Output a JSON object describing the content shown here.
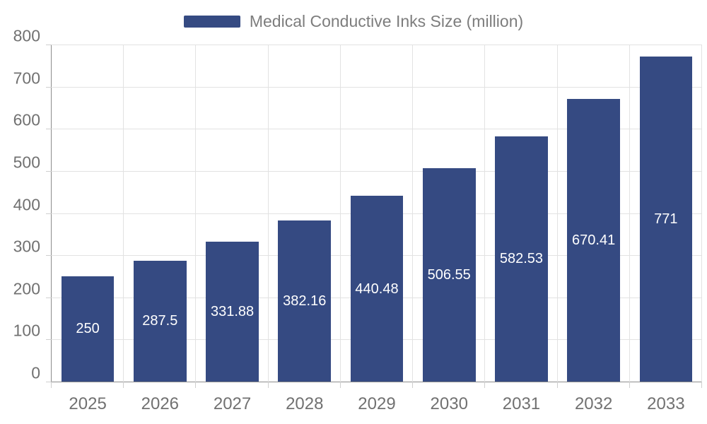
{
  "chart_data": {
    "type": "bar",
    "legend_label": "Medical Conductive Inks Size (million)",
    "categories": [
      "2025",
      "2026",
      "2027",
      "2028",
      "2029",
      "2030",
      "2031",
      "2032",
      "2033"
    ],
    "values": [
      250,
      287.5,
      331.88,
      382.16,
      440.48,
      506.55,
      582.53,
      670.41,
      771
    ],
    "value_labels": [
      "250",
      "287.5",
      "331.88",
      "382.16",
      "440.48",
      "506.55",
      "582.53",
      "670.41",
      "771"
    ],
    "title": "",
    "xlabel": "",
    "ylabel": "",
    "ylim": [
      0,
      800
    ],
    "ytick_step": 100,
    "ytick_labels": [
      "0",
      "100",
      "200",
      "300",
      "400",
      "500",
      "600",
      "700",
      "800"
    ],
    "grid": true,
    "legend_position": "top-center",
    "colors": {
      "bar": "#354A82",
      "value_label": "#FFFFFF",
      "axis_line": "#8C8C8C",
      "gridline": "#E2E2E2",
      "tick_mark": "#CFCFCF",
      "axis_text": "#717171",
      "legend_text": "#7D7D7D"
    }
  }
}
